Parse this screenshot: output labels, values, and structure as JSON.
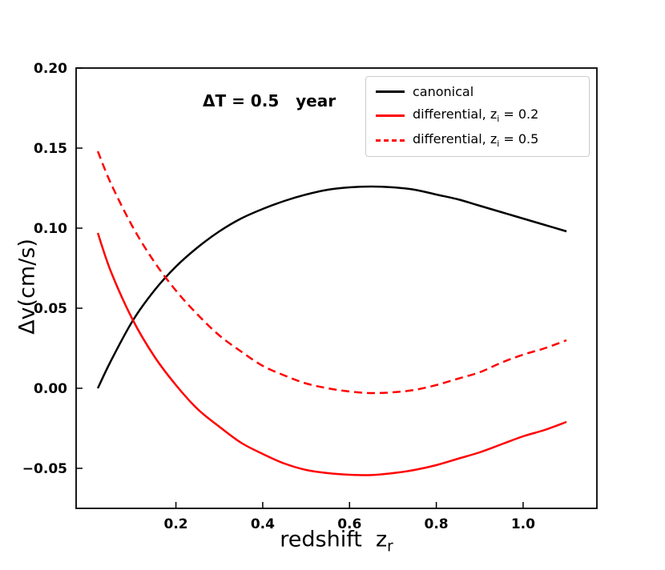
{
  "figure": {
    "background": "#ffffff",
    "annotation": "ΔT = 0.5   year",
    "ylabel": "Δv(cm/s)",
    "xlabel_main": "redshift  z",
    "xlabel_sub": "r"
  },
  "chart_data": {
    "type": "line",
    "title": "",
    "annotation": "ΔT = 0.5 year",
    "xlabel": "redshift z_r",
    "ylabel": "Δv(cm/s)",
    "xlim": [
      -0.03,
      1.17
    ],
    "ylim": [
      -0.075,
      0.2
    ],
    "xticks": [
      0.2,
      0.4,
      0.6,
      0.8,
      1.0
    ],
    "yticks": [
      -0.05,
      0.0,
      0.05,
      0.1,
      0.15,
      0.2
    ],
    "grid": false,
    "legend_position": "upper right",
    "line_width": 2.5,
    "x": [
      0.02,
      0.05,
      0.1,
      0.15,
      0.2,
      0.25,
      0.3,
      0.35,
      0.4,
      0.45,
      0.5,
      0.55,
      0.6,
      0.65,
      0.7,
      0.75,
      0.8,
      0.85,
      0.9,
      0.95,
      1.0,
      1.05,
      1.1
    ],
    "series": [
      {
        "name": "canonical",
        "label_pre": "canonical",
        "label_sub": "",
        "label_post": "",
        "color": "#000000",
        "dash": "solid",
        "values": [
          0.0,
          0.017,
          0.042,
          0.061,
          0.076,
          0.088,
          0.098,
          0.106,
          0.112,
          0.117,
          0.121,
          0.124,
          0.1255,
          0.126,
          0.1255,
          0.124,
          0.121,
          0.118,
          0.114,
          0.11,
          0.106,
          0.102,
          0.098
        ]
      },
      {
        "name": "differential, z_i = 0.2",
        "label_pre": "differential, z",
        "label_sub": "i",
        "label_post": " = 0.2",
        "color": "#ff0000",
        "dash": "solid",
        "values": [
          0.097,
          0.073,
          0.043,
          0.02,
          0.002,
          -0.013,
          -0.024,
          -0.034,
          -0.041,
          -0.047,
          -0.051,
          -0.053,
          -0.054,
          -0.0542,
          -0.053,
          -0.051,
          -0.048,
          -0.044,
          -0.04,
          -0.035,
          -0.03,
          -0.026,
          -0.021
        ]
      },
      {
        "name": "differential, z_i = 0.5",
        "label_pre": "differential, z",
        "label_sub": "i",
        "label_post": " = 0.5",
        "color": "#ff0000",
        "dash": "dashed",
        "values": [
          0.148,
          0.128,
          0.101,
          0.079,
          0.061,
          0.046,
          0.033,
          0.023,
          0.014,
          0.008,
          0.003,
          0.0,
          -0.002,
          -0.003,
          -0.0025,
          -0.001,
          0.002,
          0.006,
          0.01,
          0.016,
          0.021,
          0.025,
          0.03
        ]
      }
    ]
  }
}
